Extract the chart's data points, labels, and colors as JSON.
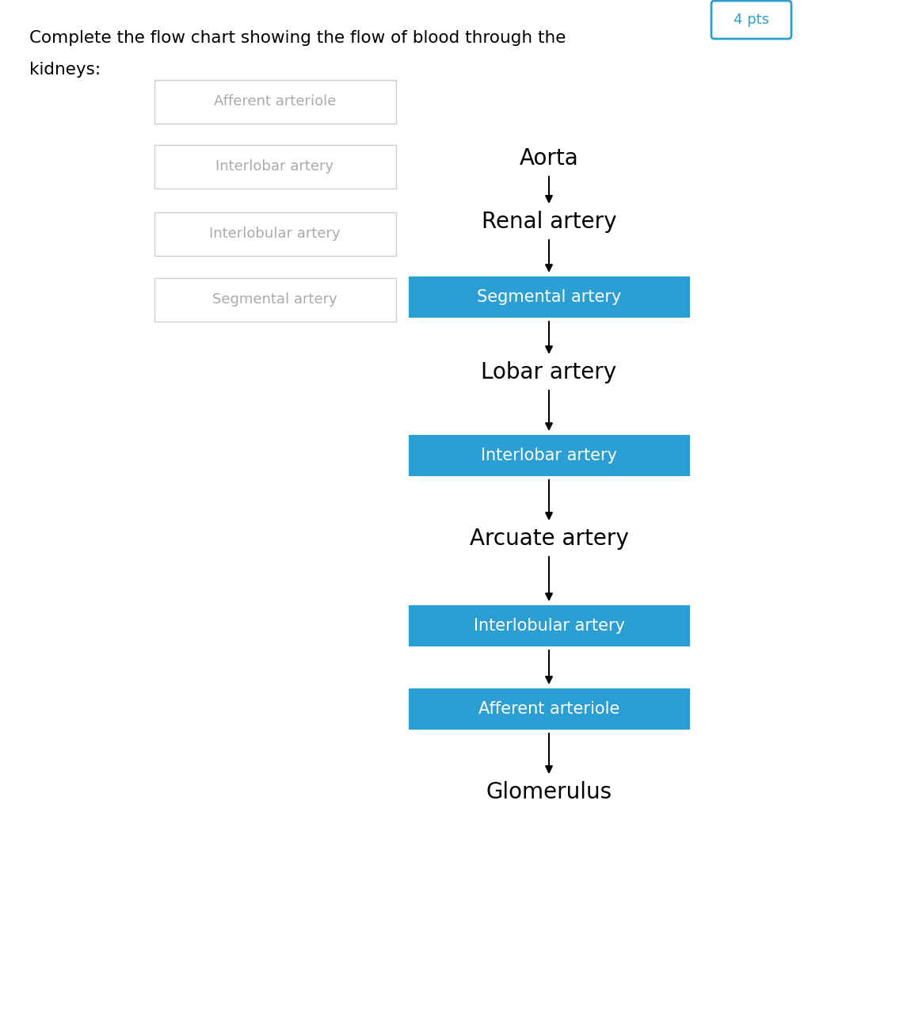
{
  "title_line1": "Complete the flow chart showing the flow of blood through the",
  "title_line2": "kidneys:",
  "pts_label": "4 pts",
  "background_color": "#ffffff",
  "blue_color": "#2B9ED4",
  "box_border_color": "#cccccc",
  "box_text_color": "#aaaaaa",
  "text_color": "#000000",
  "white_text_color": "#ffffff",
  "left_boxes": [
    "Afferent arteriole",
    "Interlobar artery",
    "Interlobular artery",
    "Segmental artery"
  ],
  "flow_items": [
    {
      "text": "Aorta",
      "type": "plain"
    },
    {
      "text": "Renal artery",
      "type": "plain"
    },
    {
      "text": "Segmental artery",
      "type": "blue_box"
    },
    {
      "text": "Lobar artery",
      "type": "plain"
    },
    {
      "text": "Interlobar artery",
      "type": "blue_box"
    },
    {
      "text": "Arcuate artery",
      "type": "plain"
    },
    {
      "text": "Interlobular artery",
      "type": "blue_box"
    },
    {
      "text": "Afferent arteriole",
      "type": "blue_box"
    },
    {
      "text": "Glomerulus",
      "type": "plain"
    }
  ],
  "fig_width": 11.45,
  "fig_height": 12.8,
  "dpi": 100
}
